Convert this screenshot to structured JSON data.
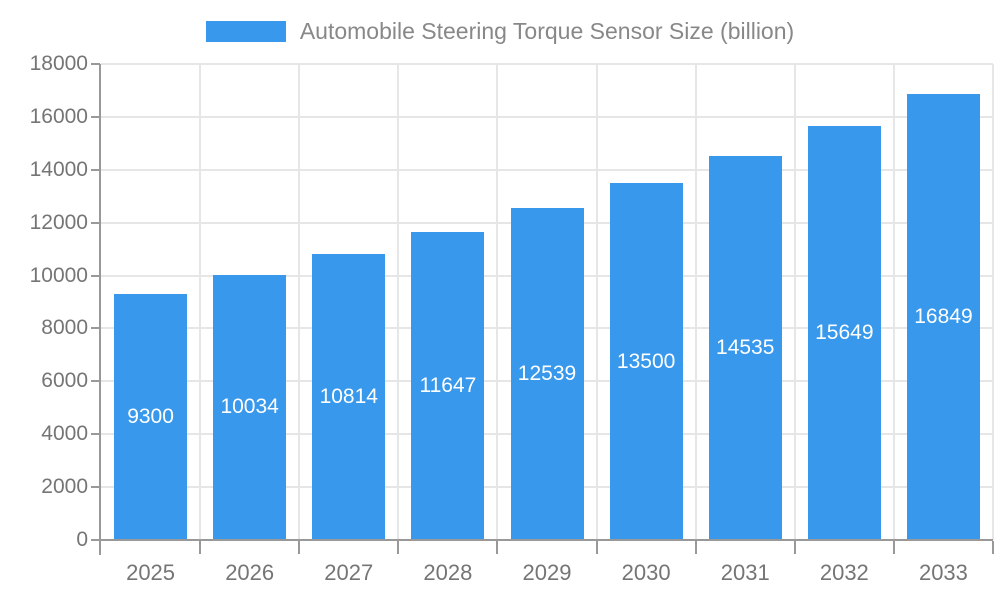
{
  "chart_data": {
    "type": "bar",
    "title": "Automobile Steering Torque Sensor Size (billion)",
    "categories": [
      "2025",
      "2026",
      "2027",
      "2028",
      "2029",
      "2030",
      "2031",
      "2032",
      "2033"
    ],
    "values": [
      9300,
      10034,
      10814,
      11647,
      12539,
      13500,
      14535,
      15649,
      16849
    ],
    "value_labels": [
      "9300",
      "10034",
      "10814",
      "11647",
      "12539",
      "13500",
      "14535",
      "15649",
      "16849"
    ],
    "ytick_labels": [
      "0",
      "2000",
      "4000",
      "6000",
      "8000",
      "10000",
      "12000",
      "14000",
      "16000",
      "18000"
    ],
    "ylim": [
      0,
      18000
    ],
    "ytick_step": 2000,
    "xlabel": "",
    "ylabel": "",
    "grid": true,
    "legend_position": "top",
    "bar_label_position": "inside-center"
  },
  "colors": {
    "bar": "#3898EC",
    "grid": "#E6E6E6",
    "axis": "#999999",
    "tick": "#999999",
    "tick_label": "#757575",
    "title": "#888888",
    "value_label": "#FFFFFF",
    "background": "#FFFFFF"
  }
}
